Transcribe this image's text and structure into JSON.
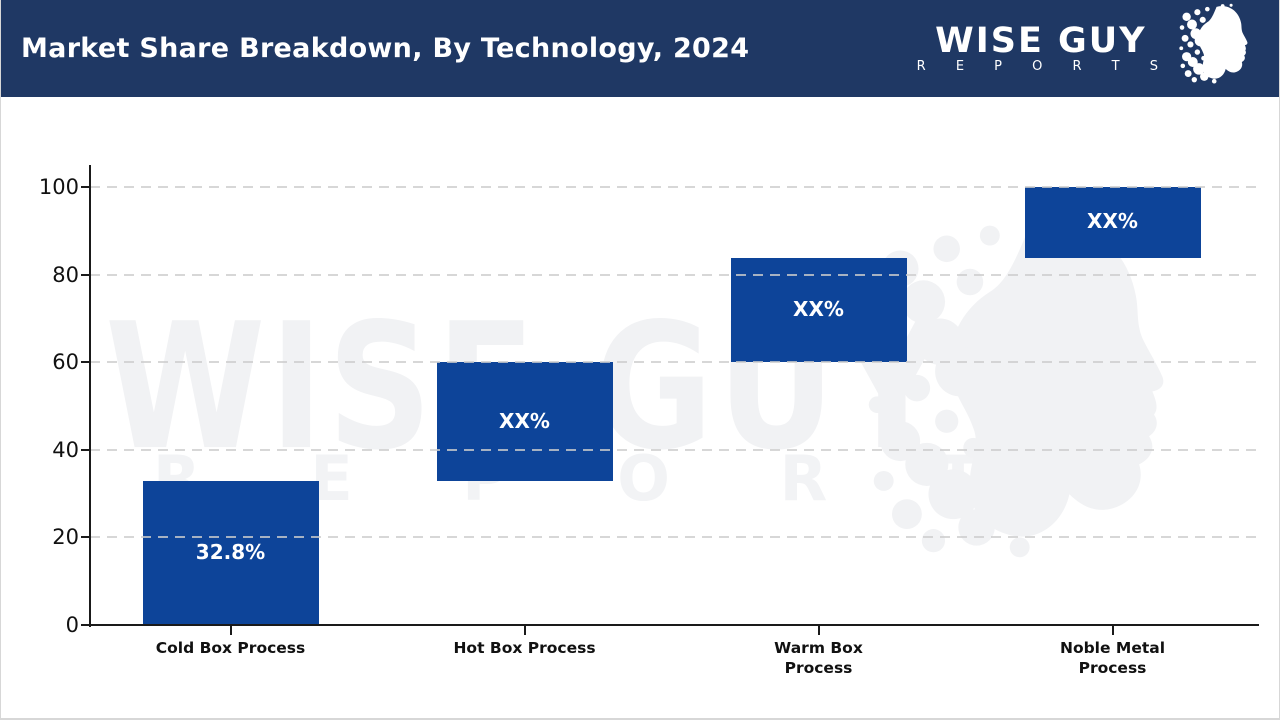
{
  "header": {
    "title": "Market Share Breakdown, By Technology, 2024",
    "bg_color": "#1f3864",
    "logo": {
      "line1": "WISE GUY",
      "line2": "R E P O R T S"
    }
  },
  "watermark": {
    "line1": "WISE GUY",
    "line2": "R E P O R T S"
  },
  "chart_data": {
    "type": "bar",
    "subtype": "waterfall",
    "title": "Market Share Breakdown, By Technology, 2024",
    "categories": [
      "Cold Box Process",
      "Hot Box Process",
      "Warm Box Process",
      "Noble Metal Process"
    ],
    "segments": [
      {
        "start": 0,
        "end": 32.8,
        "label": "32.8%"
      },
      {
        "start": 32.8,
        "end": 60.0,
        "label": "XX%"
      },
      {
        "start": 60.0,
        "end": 83.8,
        "label": "XX%"
      },
      {
        "start": 83.8,
        "end": 100.0,
        "label": "XX%"
      }
    ],
    "xlabel": "",
    "ylabel": "",
    "ylim": [
      0,
      100
    ],
    "yticks": [
      0,
      20,
      40,
      60,
      80,
      100
    ],
    "grid": "horizontal-dashed",
    "legend": "none",
    "bar_color": "#0d4499",
    "bar_label_color": "#ffffff",
    "axis_color": "#1a1a1a",
    "gridline_color": "#dcdcdc"
  }
}
